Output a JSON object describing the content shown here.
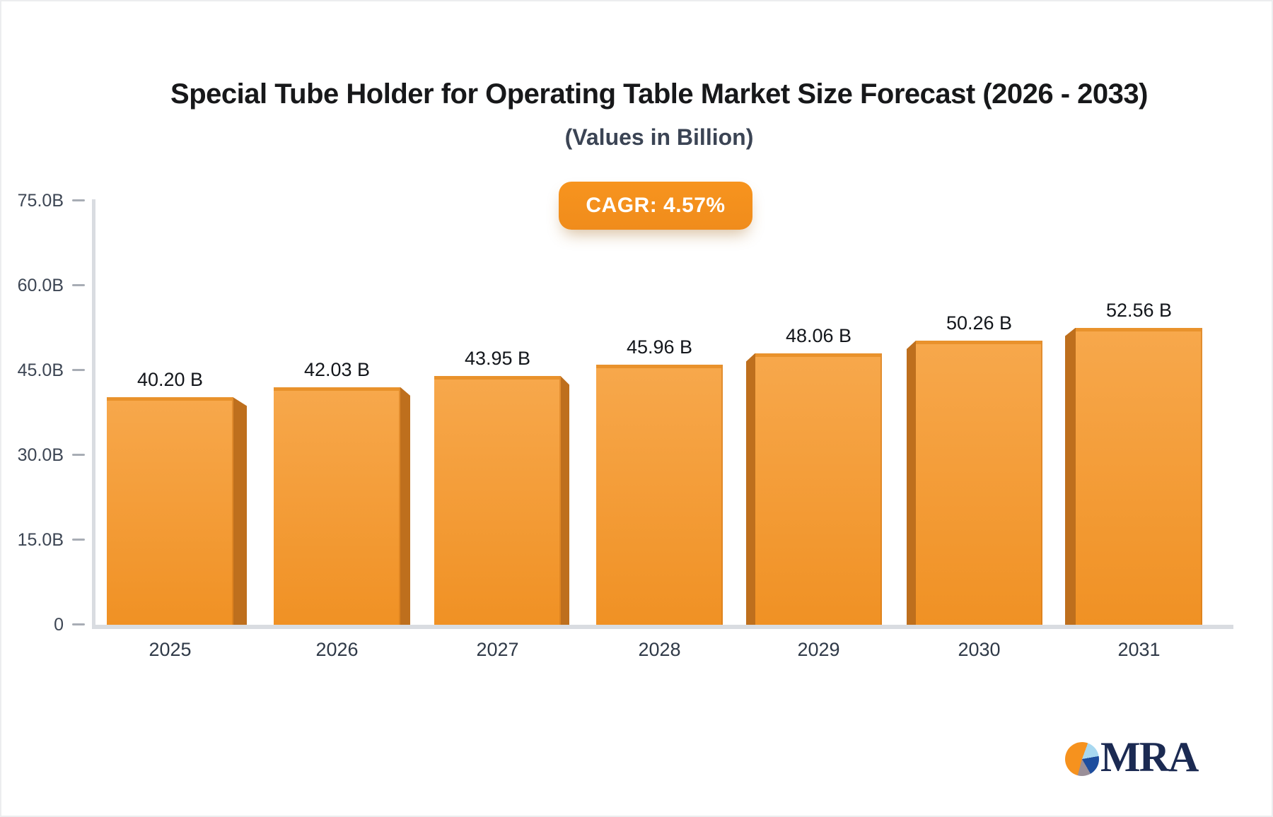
{
  "header": {
    "title": "Special Tube Holder for Operating Table Market Size Forecast (2026 - 2033)",
    "subtitle": "(Values in Billion)"
  },
  "badge": {
    "label": "CAGR: 4.57%"
  },
  "chart_data": {
    "type": "bar",
    "title": "Special Tube Holder for Operating Table Market Size Forecast (2026 - 2033)",
    "subtitle": "(Values in Billion)",
    "cagr": "4.57%",
    "unit": "Billion",
    "categories": [
      "2025",
      "2026",
      "2027",
      "2028",
      "2029",
      "2030",
      "2031"
    ],
    "values": [
      40.2,
      42.03,
      43.95,
      45.96,
      48.06,
      50.26,
      52.56
    ],
    "value_labels": [
      "40.20 B",
      "42.03 B",
      "43.95 B",
      "45.96 B",
      "48.06 B",
      "50.26 B",
      "52.56 B"
    ],
    "xlabel": "",
    "ylabel": "",
    "ylim": [
      0,
      75
    ],
    "yticks": [
      0,
      15,
      30,
      45,
      60,
      75
    ],
    "ytick_labels": [
      "0",
      "15.0B",
      "30.0B",
      "45.0B",
      "60.0B",
      "75.0B"
    ],
    "grid": false,
    "legend": false,
    "colors": {
      "bar_top": "#F7A84C",
      "bar_bottom": "#F09124",
      "bar_side": "#BE6F1D",
      "bar_edge": "#E9922C",
      "badge_bg": "#F7941E",
      "axis_line": "#D9DCE1",
      "tick": "#A8ADB5",
      "y_label": "#3D4654",
      "x_label": "#2F3947",
      "value_label": "#13161B",
      "title": "#17181A",
      "subtitle": "#3B4454"
    }
  },
  "logo": {
    "text": "MRA",
    "text_color": "#1B2A52",
    "pie_colors": {
      "orange": "#F6921E",
      "light_blue": "#A8D8F0",
      "navy": "#1E4E9E",
      "gray": "#9A8F98"
    }
  }
}
